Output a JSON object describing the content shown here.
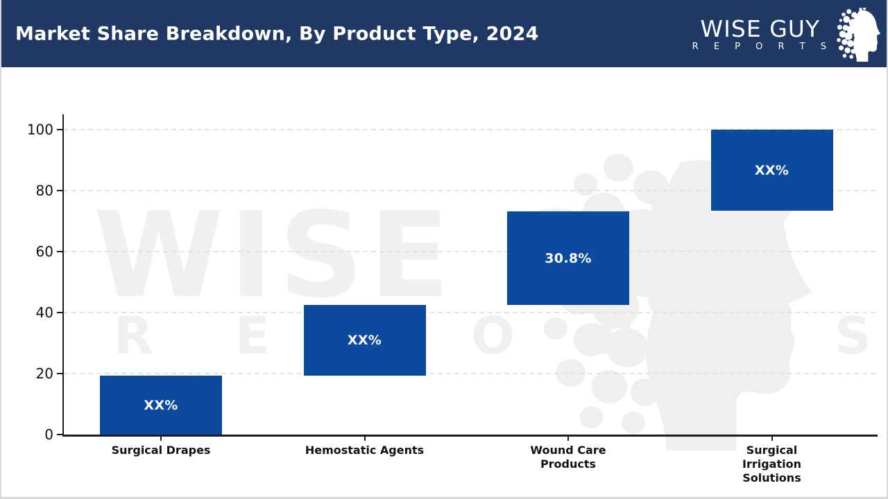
{
  "page": {
    "background": "#ffffff",
    "frame_border_color": "#d9d9d9"
  },
  "header": {
    "background": "#1f3864",
    "title": "Market Share Breakdown, By Product Type, 2024",
    "logo": {
      "line1": "WISE GUY",
      "line2": "R E P O R T S"
    }
  },
  "watermark": {
    "big_text": "WISE GUY",
    "small_text": "R E P O R T S"
  },
  "chart_data": {
    "type": "bar",
    "subtype": "waterfall-floating-segments",
    "title": "Market Share Breakdown, By Product Type, 2024",
    "categories": [
      "Surgical Drapes",
      "Hemostatic Agents",
      "Wound Care Products",
      "Surgical Irrigation Solutions"
    ],
    "bars": [
      {
        "category": "Surgical Drapes",
        "category_lines": [
          "Surgical Drapes"
        ],
        "start": 0,
        "end": 19.3,
        "label": "XX%"
      },
      {
        "category": "Hemostatic Agents",
        "category_lines": [
          "Hemostatic Agents"
        ],
        "start": 19.3,
        "end": 42.4,
        "label": "XX%"
      },
      {
        "category": "Wound Care Products",
        "category_lines": [
          "Wound Care",
          "Products"
        ],
        "start": 42.4,
        "end": 73.2,
        "label": "30.8%"
      },
      {
        "category": "Surgical Irrigation Solutions",
        "category_lines": [
          "Surgical",
          "Irrigation",
          "Solutions"
        ],
        "start": 73.4,
        "end": 100,
        "label": "XX%"
      }
    ],
    "xlabel": "",
    "ylabel": "",
    "yticks": [
      0,
      20,
      40,
      60,
      80,
      100
    ],
    "ylim": [
      0,
      105
    ],
    "grid": "horizontal-dashed",
    "legend": "none",
    "bar_color": "#0b4a9e",
    "bar_label_color": "#ffffff",
    "axis_color": "#1c1c1c",
    "grid_color": "#e3e3e3",
    "tick_label_color": "#111111"
  }
}
